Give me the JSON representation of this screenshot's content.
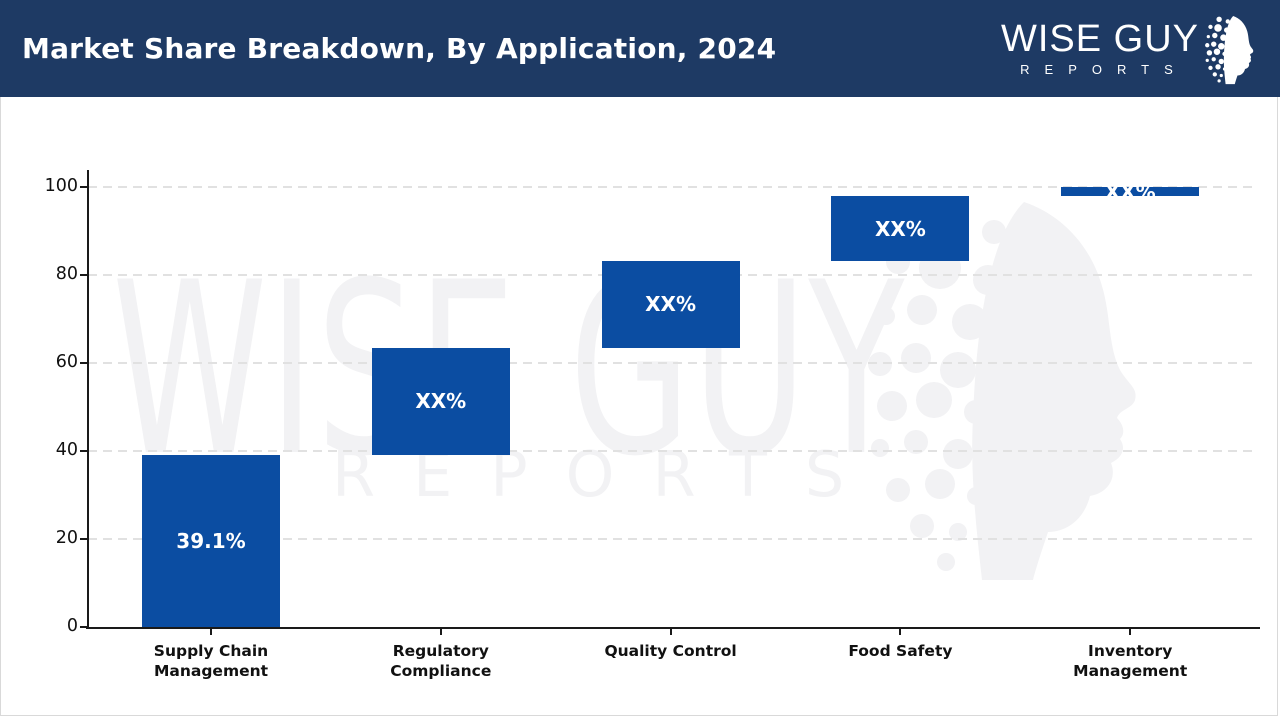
{
  "header": {
    "title": "Market Share Breakdown, By Application, 2024",
    "logo": {
      "line1": "WISE GUY",
      "line2": "REPORTS"
    }
  },
  "watermark": {
    "line1": "WISE GUY",
    "line2": "REPORTS"
  },
  "colors": {
    "header_bg": "#1e3a64",
    "bar": "#0b4da2",
    "grid": "#e1e1e1",
    "axis": "#1a1a1a",
    "bar_label_text": "#ffffff",
    "watermark": "#f2f2f4"
  },
  "chart_data": {
    "type": "bar",
    "subtype": "waterfall",
    "title": "Market Share Breakdown, By Application, 2024",
    "categories": [
      "Supply Chain\nManagement",
      "Regulatory\nCompliance",
      "Quality Control",
      "Food Safety",
      "Inventory\nManagement"
    ],
    "segments": [
      {
        "category": "Supply Chain Management",
        "start": 0,
        "end": 39.1,
        "label": "39.1%"
      },
      {
        "category": "Regulatory Compliance",
        "start": 39.1,
        "end": 63.5,
        "label": "XX%"
      },
      {
        "category": "Quality Control",
        "start": 63.5,
        "end": 83.2,
        "label": "XX%"
      },
      {
        "category": "Food Safety",
        "start": 83.2,
        "end": 97.9,
        "label": "XX%"
      },
      {
        "category": "Inventory Management",
        "start": 97.9,
        "end": 100,
        "label": "XX%"
      }
    ],
    "yticks": [
      0,
      20,
      40,
      60,
      80,
      100
    ],
    "ylim": [
      0,
      100
    ],
    "xlabel": "",
    "ylabel": "",
    "grid": true,
    "legend": false
  }
}
